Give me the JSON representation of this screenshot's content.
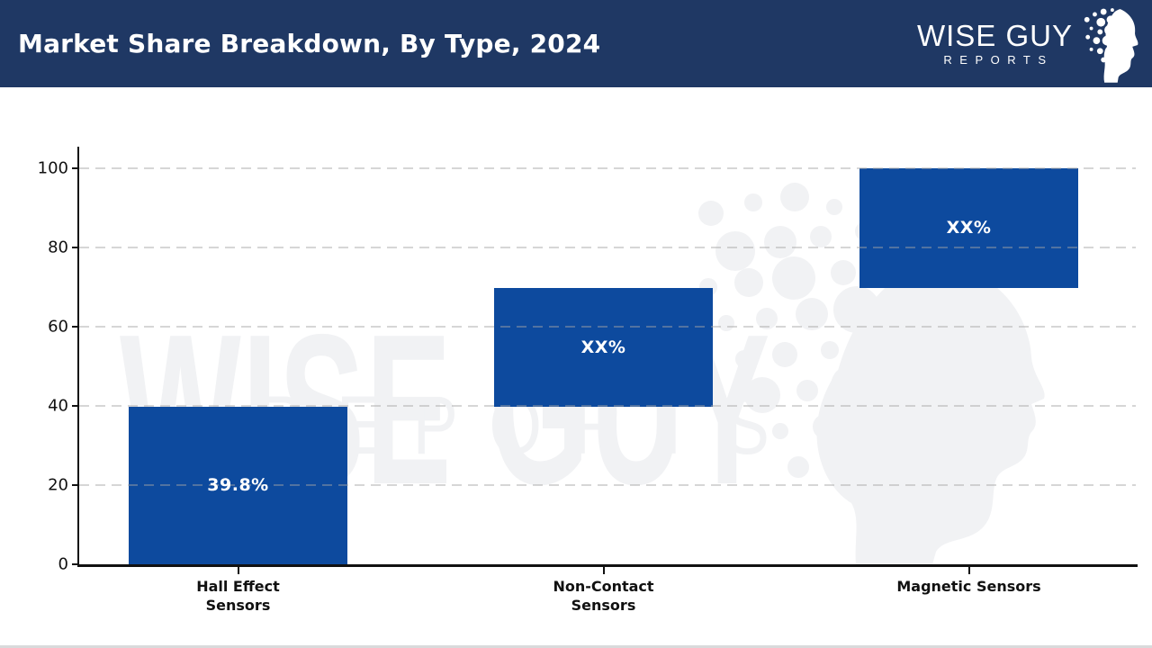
{
  "header": {
    "title": "Market Share Breakdown, By Type, 2024",
    "logo": {
      "main": "WISE GUY",
      "sub": "REPORTS"
    }
  },
  "watermark": {
    "line1": "WISE GUY",
    "line2": "REPORTS"
  },
  "colors": {
    "header_bg": "#1f3864",
    "bar": "#0d4a9e",
    "bar_label": "#ffffff",
    "axis": "#111111",
    "grid": "#d8d8d8",
    "watermark": "#f1f2f4"
  },
  "chart_data": {
    "type": "bar",
    "subtype": "waterfall",
    "title": "Market Share Breakdown, By Type, 2024",
    "categories": [
      "Hall Effect\nSensors",
      "Non-Contact\nSensors",
      "Magnetic Sensors"
    ],
    "segments": [
      {
        "category": "Hall Effect Sensors",
        "start": 0,
        "end": 39.8,
        "label": "39.8%"
      },
      {
        "category": "Non-Contact Sensors",
        "start": 39.8,
        "end": 69.8,
        "label": "XX%"
      },
      {
        "category": "Magnetic Sensors",
        "start": 69.8,
        "end": 100,
        "label": "XX%"
      }
    ],
    "xlabel": "",
    "ylabel": "",
    "ylim": [
      0,
      100
    ],
    "yticks": [
      0,
      20,
      40,
      60,
      80,
      100
    ],
    "grid": {
      "axis": "y",
      "style": "dashed",
      "drawn_over_bars": true
    },
    "legend": "none",
    "bar_color": "#0d4a9e",
    "bar_label_color": "#ffffff"
  }
}
